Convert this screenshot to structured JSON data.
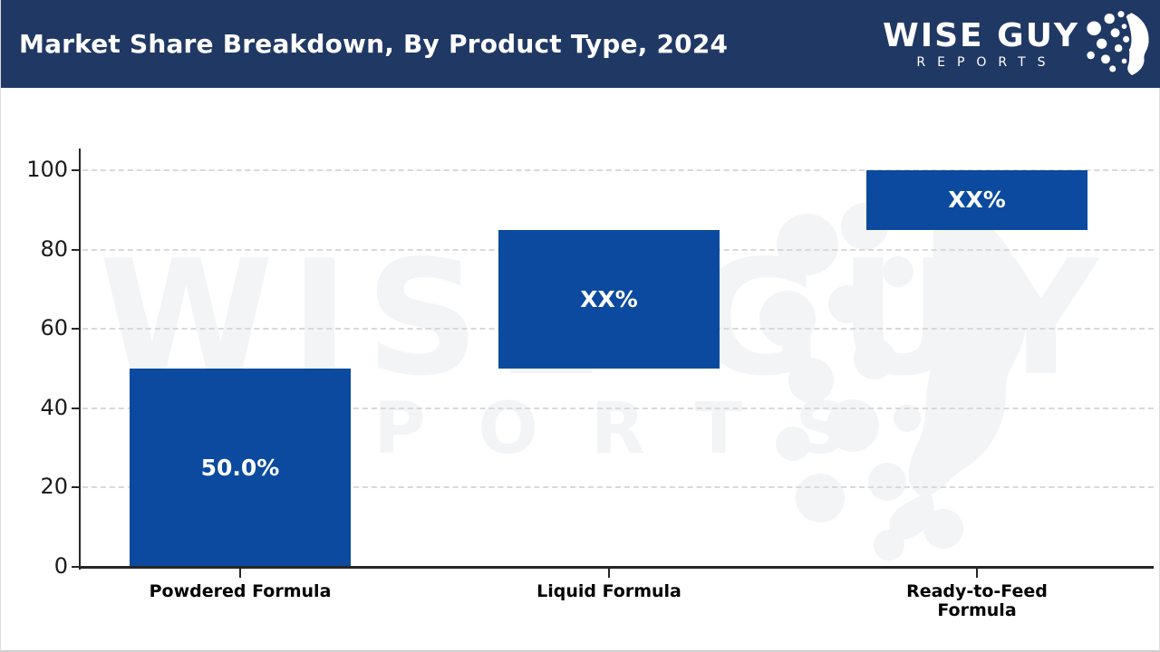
{
  "header": {
    "title": "Market Share Breakdown, By Product Type, 2024",
    "logo": {
      "line1": "WISE GUY",
      "line2": "REPORTS"
    }
  },
  "watermark": {
    "line1": "WISE GUY",
    "line2": "REPORTS"
  },
  "colors": {
    "header_bg": "#203864",
    "bar": "#0b4a9e",
    "bar_label": "#ffffff",
    "axis": "#262626",
    "grid": "#d9d9d9",
    "watermark": "#f3f4f6"
  },
  "chart_data": {
    "type": "bar",
    "variant": "stacked-waterfall-segments",
    "title": "Market Share Breakdown, By Product Type, 2024",
    "xlabel": "",
    "ylabel": "",
    "categories": [
      "Powdered Formula",
      "Liquid Formula",
      "Ready-to-Feed Formula"
    ],
    "category_label_lines": [
      [
        "Powdered Formula"
      ],
      [
        "Liquid Formula"
      ],
      [
        "Ready-to-Feed",
        "Formula"
      ]
    ],
    "segments": [
      {
        "category": "Powdered Formula",
        "start": 0,
        "end": 50,
        "value": 50,
        "label": "50.0%"
      },
      {
        "category": "Liquid Formula",
        "start": 50,
        "end": 85,
        "value": 35,
        "label": "XX%"
      },
      {
        "category": "Ready-to-Feed Formula",
        "start": 85,
        "end": 100,
        "value": 15,
        "label": "XX%"
      }
    ],
    "yticks": [
      0,
      20,
      40,
      60,
      80,
      100
    ],
    "ytick_labels": [
      "0",
      "20",
      "40",
      "60",
      "80",
      "100"
    ],
    "ylim": [
      0,
      105
    ],
    "grid": "horizontal-dashed",
    "legend": "none"
  }
}
